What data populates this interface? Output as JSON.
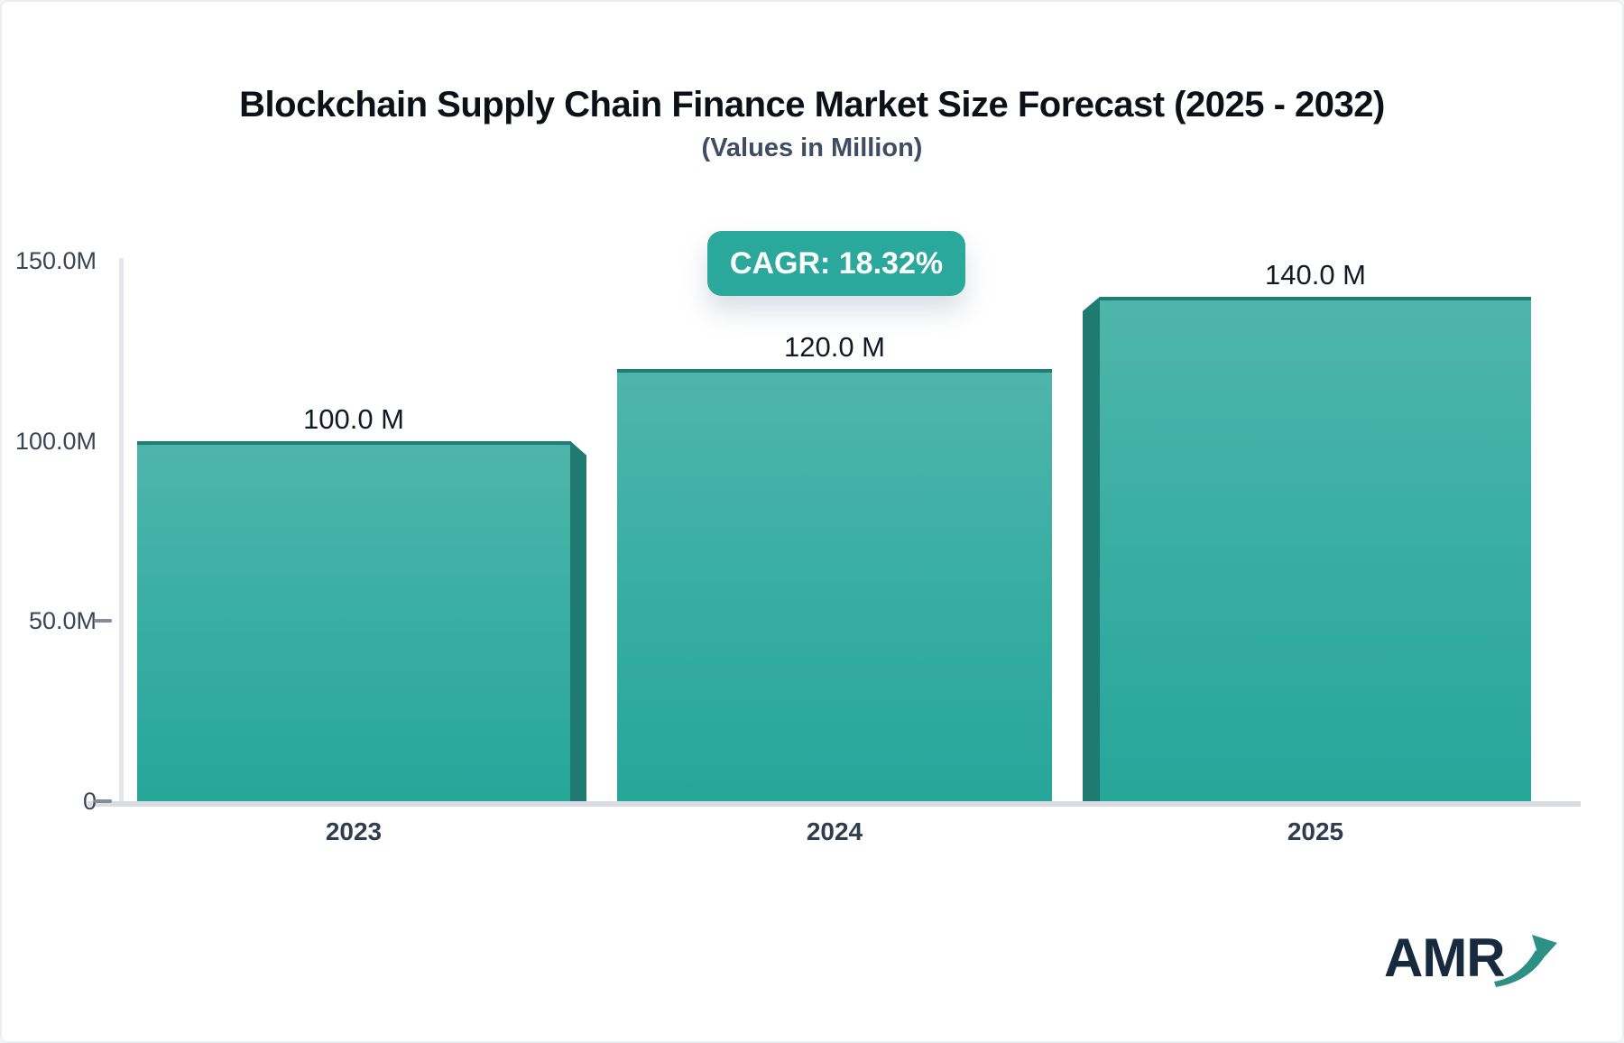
{
  "page": {
    "background": "#FFFFFF",
    "border_color": "#EDEEF2"
  },
  "header": {
    "title": "Blockchain Supply Chain Finance Market Size Forecast (2025 - 2032)",
    "subtitle": "(Values in Million)"
  },
  "badge": {
    "label": "CAGR: 18.32%",
    "bg_color": "#2BA89C",
    "text_color": "#FFFFFF"
  },
  "chart_data": {
    "type": "bar",
    "title": "Blockchain Supply Chain Finance Market Size Forecast (2025 - 2032)",
    "subtitle": "(Values in Million)",
    "unit": "Million",
    "categories": [
      "2023",
      "2024",
      "2025"
    ],
    "values": [
      100.0,
      120.0,
      140.0
    ],
    "bar_labels": [
      "100.0 M",
      "120.0 M",
      "140.0 M"
    ],
    "annotation": "CAGR: 18.32%",
    "ylim": [
      0,
      150
    ],
    "yticks": [
      {
        "value": 150,
        "label": "150.0M",
        "dash": false
      },
      {
        "value": 100,
        "label": "100.0M",
        "dash": false
      },
      {
        "value": 50,
        "label": "50.0M",
        "dash": true
      },
      {
        "value": 0,
        "label": "0",
        "dash": true
      }
    ],
    "grid": false,
    "legend": false,
    "colors": {
      "bar_top": "#4FB5AC",
      "bar_bottom": "#27A69A",
      "bar_top_edge": "#1E7D75",
      "bar_side": "#1F7A72",
      "axis_line": "#E4E6EA",
      "baseline": "#D9DCE2",
      "tick_text": "#3A4656",
      "value_text": "#121A26",
      "year_text": "#2F3D4F"
    }
  },
  "logo": {
    "text": "AMR",
    "text_color": "#182A3D",
    "arrow_color": "#2E8F86",
    "arrow_icon": "trending-up-arrow"
  }
}
